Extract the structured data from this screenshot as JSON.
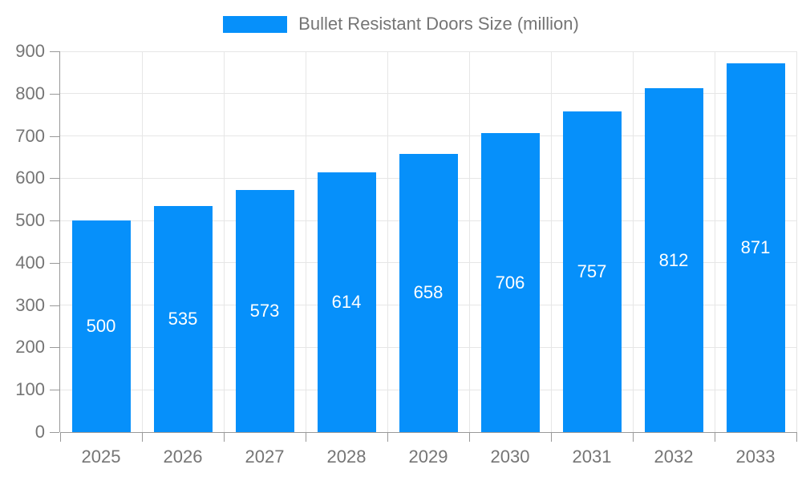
{
  "legend": {
    "label": "Bullet Resistant Doors Size (million)"
  },
  "colors": {
    "bar": "#0690fa",
    "axis_label": "#757575",
    "value_label": "#ffffff",
    "gridline": "#e6e6e6",
    "axis_line": "#999999",
    "background": "#ffffff"
  },
  "chart_data": {
    "type": "bar",
    "title": "",
    "series_name": "Bullet Resistant Doors Size (million)",
    "categories": [
      "2025",
      "2026",
      "2027",
      "2028",
      "2029",
      "2030",
      "2031",
      "2032",
      "2033"
    ],
    "values": [
      500,
      535,
      573,
      614,
      658,
      706,
      757,
      812,
      871
    ],
    "xlabel": "",
    "ylabel": "",
    "ylim": [
      0,
      900
    ],
    "ytick_interval": 100,
    "ytick_labels": [
      "0",
      "100",
      "200",
      "300",
      "400",
      "500",
      "600",
      "700",
      "800",
      "900"
    ],
    "grid": true,
    "legend_position": "top",
    "bar_labels_inside": true
  }
}
